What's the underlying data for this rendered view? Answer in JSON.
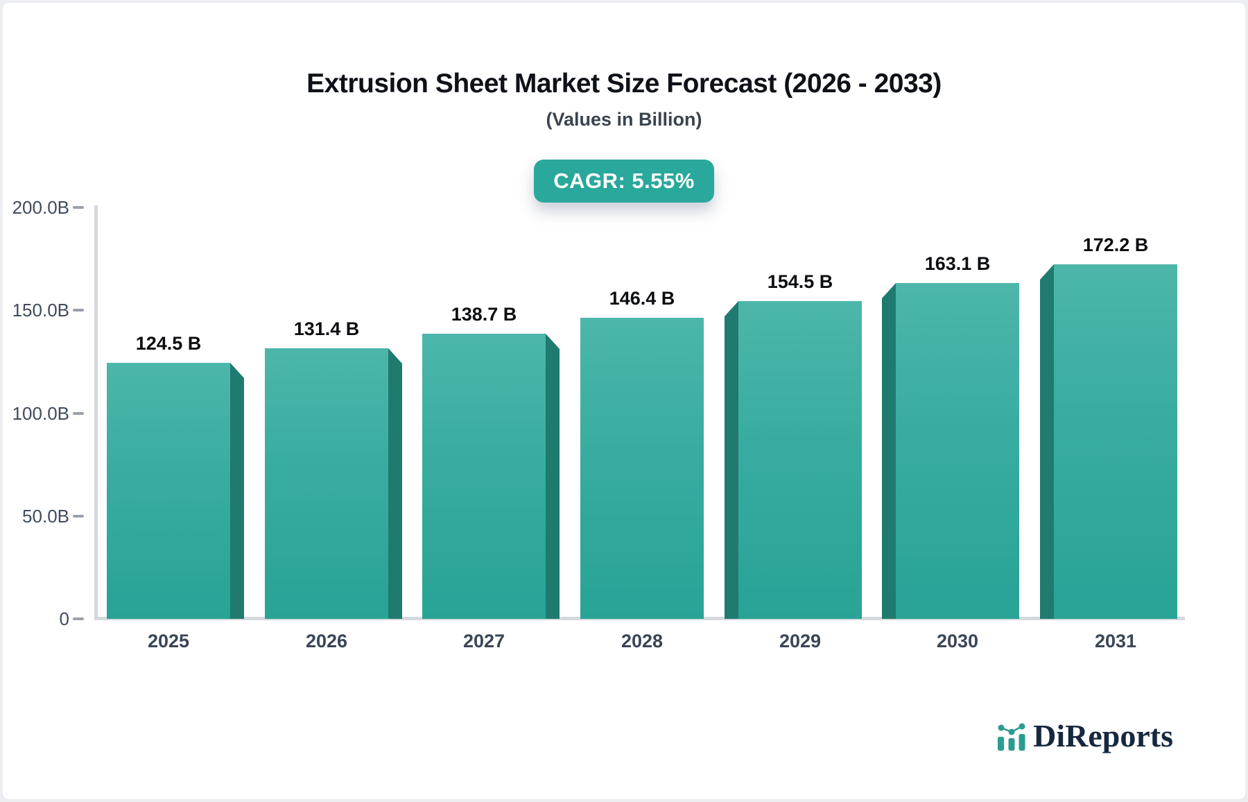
{
  "title": "Extrusion Sheet Market Size Forecast (2026 - 2033)",
  "subtitle": "(Values in Billion)",
  "badge": {
    "label": "CAGR: 5.55%"
  },
  "logo": {
    "text": "DiReports"
  },
  "colors": {
    "bar_top": "#4db6aa",
    "bar_bottom": "#28a396",
    "bar_side": "#1f7a70",
    "badge_bg": "#29a89b",
    "axis": "#d5d8dc",
    "logo_navy": "#16283f",
    "logo_teal": "#2b9c92"
  },
  "chart_data": {
    "type": "bar",
    "title": "Extrusion Sheet Market Size Forecast (2026 - 2033)",
    "subtitle": "(Values in Billion)",
    "annotation": "CAGR: 5.55%",
    "categories": [
      "2025",
      "2026",
      "2027",
      "2028",
      "2029",
      "2030",
      "2031"
    ],
    "values": [
      124.5,
      131.4,
      138.7,
      146.4,
      154.5,
      163.1,
      172.2
    ],
    "value_labels": [
      "124.5 B",
      "131.4 B",
      "138.7 B",
      "146.4 B",
      "154.5 B",
      "163.1 B",
      "172.2 B"
    ],
    "unit": "Billion",
    "xlabel": "",
    "ylabel": "",
    "ylim": [
      0,
      200
    ],
    "yticks": [
      {
        "value": 200,
        "label": "200.0B"
      },
      {
        "value": 150,
        "label": "150.0B"
      },
      {
        "value": 100,
        "label": "100.0B"
      },
      {
        "value": 50,
        "label": "50.0B"
      },
      {
        "value": 0,
        "label": "0"
      }
    ],
    "grid": false,
    "legend": false,
    "style": "3d-bevel-bars"
  }
}
